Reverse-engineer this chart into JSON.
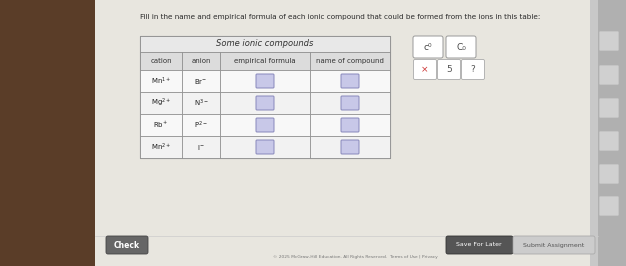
{
  "title": "Fill in the name and empirical formula of each ionic compound that could be formed from the ions in this table:",
  "table_title": "Some ionic compounds",
  "col_headers": [
    "cation",
    "anion",
    "empirical formula",
    "name of compound"
  ],
  "cation_labels": [
    "Mn$^{1+}$",
    "Br$^{-}$",
    "Mg$^{2+}$",
    "N$^{3-}$",
    "Rb$^{+}$",
    "P$^{2-}$",
    "Mn$^{2+}$",
    "I$^{-}$"
  ],
  "cations": [
    "Mn$^{1+}$",
    "Mg$^{2+}$",
    "Rb$^{+}$",
    "Mn$^{2+}$"
  ],
  "anions": [
    "Br$^{-}$",
    "N$^{3-}$",
    "P$^{2-}$",
    "I$^{-}$"
  ],
  "bg_left": "#6b4c35",
  "bg_right": "#9a9a9a",
  "page_color": "#e8e6e0",
  "table_border": "#888888",
  "cell_bg_light": "#f5f5f5",
  "cell_bg_mid": "#ebebeb",
  "header_bg": "#e0e0e0",
  "title_row_bg": "#e5e5e5",
  "input_box_color": "#c8c8e8",
  "input_box_border": "#8888bb",
  "side_panel_bg": "#b8b8b8",
  "side_icon_bg": "#d0d0d0",
  "check_button_bg": "#666666",
  "save_button_bg": "#555555",
  "submit_button_bg": "#cccccc",
  "right_strip_bg": "#c0c0c0",
  "footer_text": "© 2025 McGraw-Hill Education. All Rights Reserved.  Terms of Use | Privacy",
  "check_button": "Check",
  "save_button": "Save For Later",
  "submit_button": "Submit Assignment"
}
